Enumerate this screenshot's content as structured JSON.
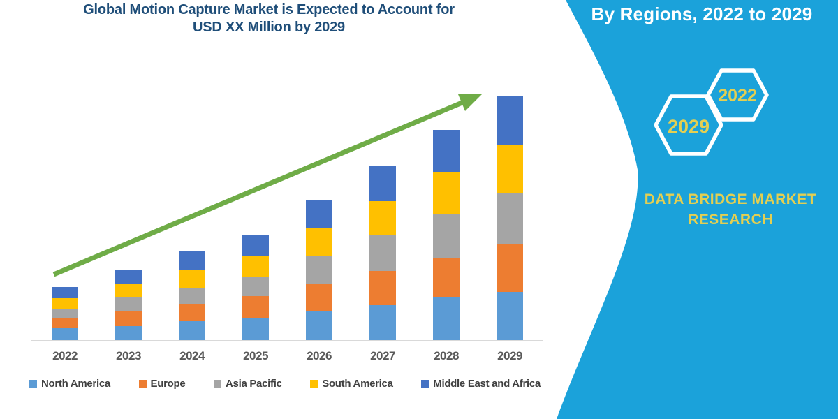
{
  "title": {
    "line1": "Global Motion Capture Market is Expected to Account for",
    "line2": "USD XX Million by 2029",
    "color": "#1F4E79"
  },
  "panel": {
    "background_color": "#1BA2DA",
    "heading": "By Regions, 2022 to 2029",
    "heading_color": "#FFFFFF",
    "hexagon_front_label": "2029",
    "hexagon_back_label": "2022",
    "hexagon_stroke_color": "#FFFFFF",
    "hexagon_text_color": "#E3CF52",
    "brand_line1": "DATA BRIDGE MARKET",
    "brand_line2": "RESEARCH",
    "brand_color": "#E3CF52"
  },
  "chart_data": {
    "type": "bar",
    "stacked": true,
    "title": "Global Motion Capture Market is Expected to Account for USD XX Million by 2029",
    "xlabel": "",
    "ylabel": "",
    "y_axis_visible": false,
    "gridlines": false,
    "legend_position": "bottom",
    "value_unit": "relative height (actual values shown as USD XX Million placeholder)",
    "categories": [
      "2022",
      "2023",
      "2024",
      "2025",
      "2026",
      "2027",
      "2028",
      "2029"
    ],
    "series": [
      {
        "name": "North America",
        "color": "#5B9BD5",
        "values": [
          17,
          20,
          27,
          31,
          41,
          50,
          61,
          69
        ]
      },
      {
        "name": "Europe",
        "color": "#ED7D31",
        "values": [
          15,
          21,
          24,
          32,
          40,
          49,
          57,
          69
        ]
      },
      {
        "name": "Asia Pacific",
        "color": "#A5A5A5",
        "values": [
          13,
          20,
          24,
          28,
          40,
          51,
          62,
          72
        ]
      },
      {
        "name": "South America",
        "color": "#FFC000",
        "values": [
          15,
          20,
          26,
          30,
          39,
          49,
          60,
          70
        ]
      },
      {
        "name": "Middle East and Africa",
        "color": "#4472C4",
        "values": [
          16,
          19,
          26,
          30,
          40,
          51,
          61,
          70
        ]
      }
    ],
    "stack_totals": [
      76,
      100,
      127,
      151,
      200,
      250,
      301,
      350
    ],
    "trend_arrow": {
      "present": true,
      "color": "#6FAC47",
      "direction": "up-right"
    },
    "baseline_color": "#D9D9D9"
  }
}
